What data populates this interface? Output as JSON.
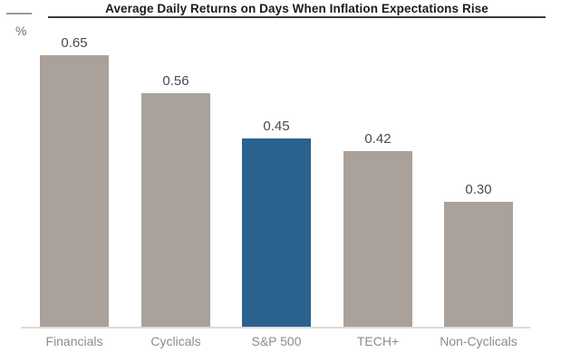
{
  "header": {
    "title": "Average Daily Returns on Days When Inflation Expectations Rise",
    "y_axis_unit": "%"
  },
  "chart_data": {
    "type": "bar",
    "title": "Average Daily Returns on Days When Inflation Expectations Rise",
    "ylabel": "%",
    "xlabel": "",
    "categories": [
      "Financials",
      "Cyclicals",
      "S&P 500",
      "TECH+",
      "Non-Cyclicals"
    ],
    "values": [
      0.65,
      0.56,
      0.45,
      0.42,
      0.3
    ],
    "value_labels": [
      "0.65",
      "0.56",
      "0.45",
      "0.42",
      "0.30"
    ],
    "ylim": [
      0,
      0.7
    ],
    "grid": false,
    "legend": "none",
    "y_axis_ticks": "none",
    "highlight_category": "S&P 500",
    "colors": {
      "bar_default": "#a9a19a",
      "bar_highlight": "#2b618e",
      "value_label": "#4a4a4a",
      "category_label": "#8c8c8c",
      "baseline": "#dcdcdc",
      "title": "#1c1c1c"
    }
  }
}
